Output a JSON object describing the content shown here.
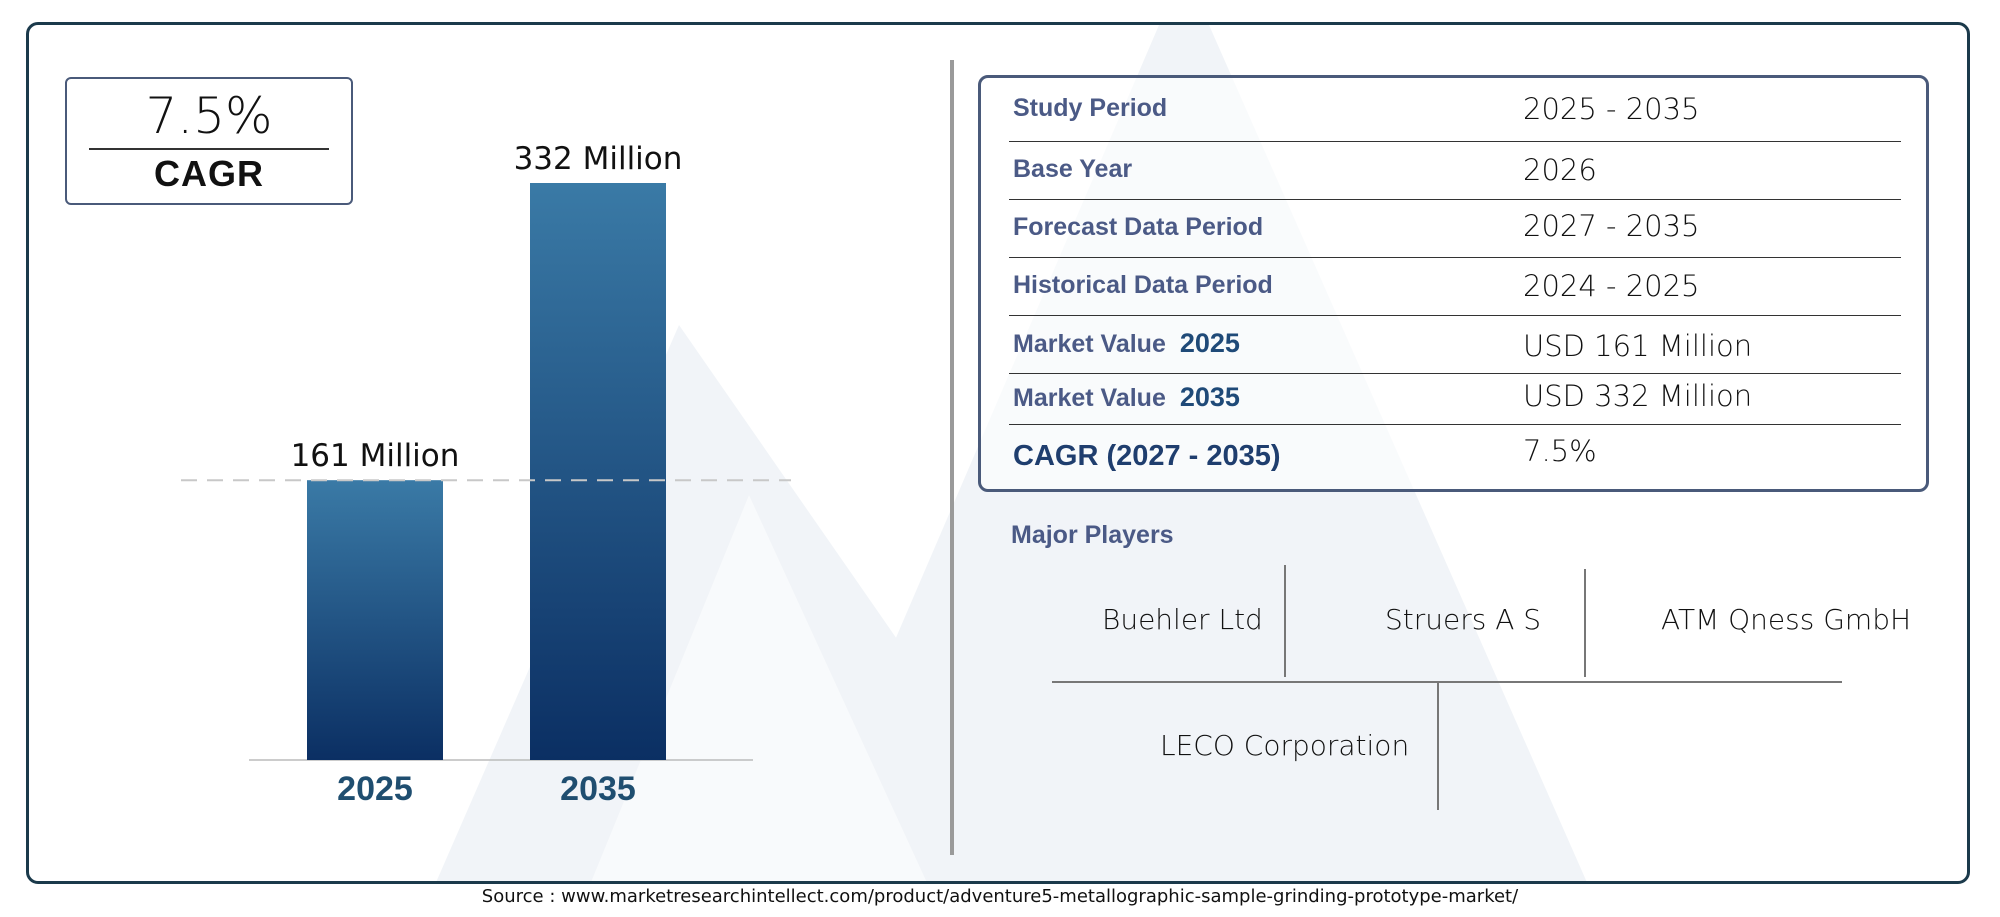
{
  "cagr_box": {
    "value": "7.5%",
    "label": "CAGR"
  },
  "chart_data": {
    "type": "bar",
    "categories": [
      "2025",
      "2035"
    ],
    "values": [
      161,
      332
    ],
    "data_labels": [
      "161 Million",
      "332 Million"
    ],
    "unit": "Million",
    "title": "",
    "xlabel": "",
    "ylabel": "",
    "ylim": [
      0,
      360
    ],
    "grid": false,
    "reference_line_at": 161,
    "colors": {
      "bar_top": "#3a7aa6",
      "bar_bottom": "#0b2f63",
      "category_label": "#1f4e70"
    }
  },
  "table": {
    "rows": [
      {
        "label": "Study Period",
        "year": "",
        "value": "2025 - 2035"
      },
      {
        "label": "Base Year",
        "year": "",
        "value": "2026"
      },
      {
        "label": "Forecast Data Period",
        "year": "",
        "value": "2027 - 2035"
      },
      {
        "label": "Historical Data Period",
        "year": "",
        "value": "2024 - 2025"
      },
      {
        "label": "Market Value",
        "year": "2025",
        "value": "USD 161 Million"
      },
      {
        "label": "Market Value",
        "year": "2035",
        "value": "USD 332 Million"
      },
      {
        "label": "CAGR (2027 - 2035)",
        "year": "",
        "value": "7.5%"
      }
    ]
  },
  "players": {
    "title": "Major Players",
    "items": [
      "Buehler Ltd",
      "Struers A S",
      "ATM Qness GmbH",
      "LECO Corporation"
    ]
  },
  "source": "Source : www.marketresearchintellect.com/product/adventure5-metallographic-sample-grinding-prototype-market/",
  "colors": {
    "frame": "#1b3a4b",
    "label_text": "#4b5a86",
    "watermark": "#eef2f7"
  }
}
